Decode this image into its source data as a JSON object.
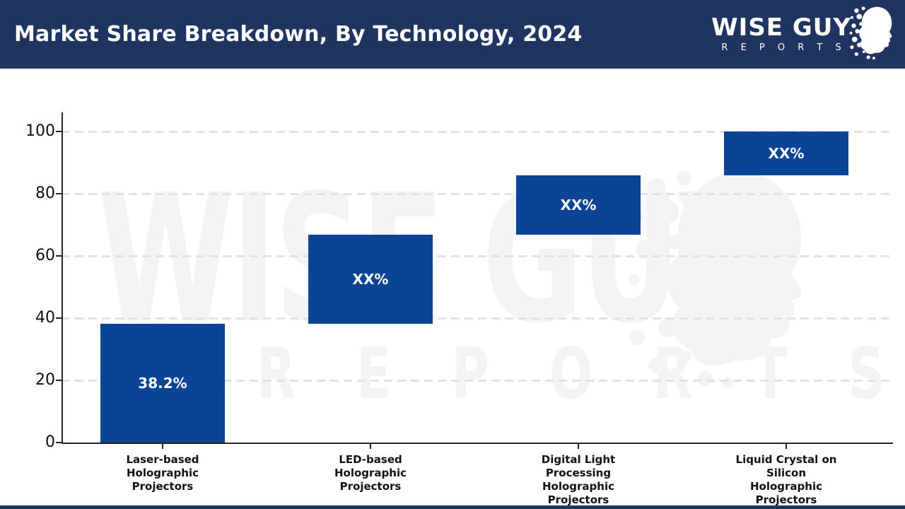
{
  "header": {
    "title": "Market Share Breakdown, By Technology, 2024",
    "logo_line1": "WISE GUY",
    "logo_line2": "R E P O R T S"
  },
  "watermark": {
    "line1": "WISE GUY",
    "line2": "R E P O R T S"
  },
  "colors": {
    "header_bg": "#1f3560",
    "bar": "#0b4494",
    "bar_label": "#ffffff",
    "grid": "#e2e2e2",
    "axis": "#262626",
    "watermark": "#f3f3f5"
  },
  "chart_data": {
    "type": "bar",
    "subtype": "waterfall",
    "title": "Market Share Breakdown, By Technology, 2024",
    "categories": [
      "Laser-based\nHolographic\nProjectors",
      "LED-based\nHolographic\nProjectors",
      "Digital Light\nProcessing\nHolographic\nProjectors",
      "Liquid Crystal on\nSilicon\nHolographic\nProjectors"
    ],
    "segments": [
      {
        "category": "Laser-based Holographic Projectors",
        "start": 0,
        "end": 38.2,
        "value": 38.2,
        "label": "38.2%"
      },
      {
        "category": "LED-based Holographic Projectors",
        "start": 38.2,
        "end": 66.8,
        "value": 28.6,
        "label": "XX%"
      },
      {
        "category": "Digital Light Processing Holographic Projectors",
        "start": 66.8,
        "end": 85.9,
        "value": 19.1,
        "label": "XX%"
      },
      {
        "category": "Liquid Crystal on Silicon Holographic Projectors",
        "start": 85.9,
        "end": 100,
        "value": 14.1,
        "label": "XX%"
      }
    ],
    "ylim": [
      0,
      106
    ],
    "yticks": [
      0,
      20,
      40,
      60,
      80,
      100
    ],
    "grid": "horizontal-dashed",
    "legend": null
  }
}
